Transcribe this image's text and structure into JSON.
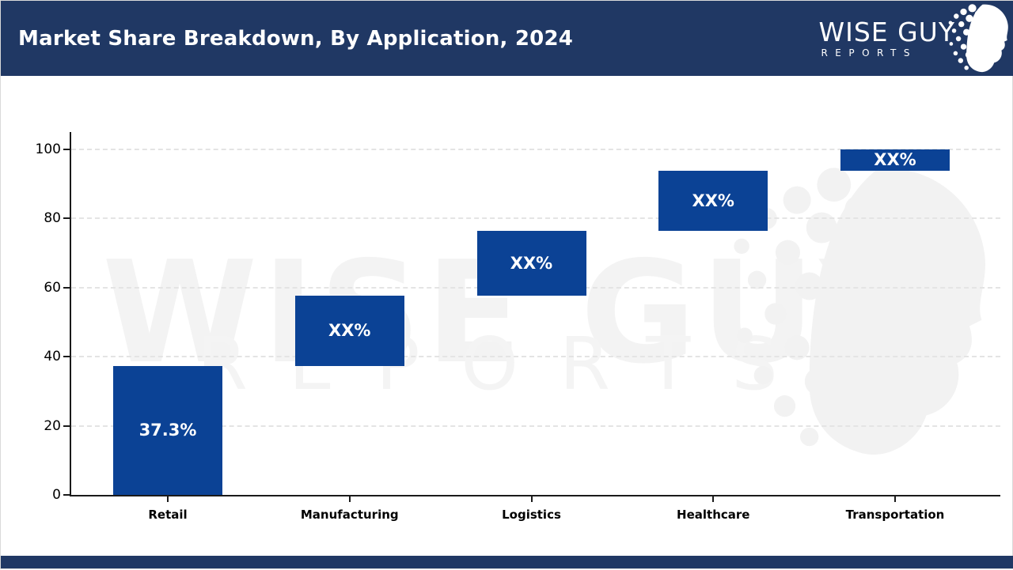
{
  "header": {
    "title": "Market Share Breakdown, By Application, 2024",
    "logo": {
      "line1": "WISE GUY",
      "line2": "REPORTS"
    }
  },
  "watermark": {
    "line1": "WISE GUY",
    "line2": "REPORTS"
  },
  "chart_data": {
    "type": "bar",
    "subtype": "waterfall",
    "title": "Market Share Breakdown, By Application, 2024",
    "xlabel": "",
    "ylabel": "",
    "categories": [
      "Retail",
      "Manufacturing",
      "Logistics",
      "Healthcare",
      "Transportation"
    ],
    "segments": [
      {
        "category": "Retail",
        "start": 0,
        "end": 37.3,
        "label": "37.3%"
      },
      {
        "category": "Manufacturing",
        "start": 37.3,
        "end": 57.6,
        "label": "XX%"
      },
      {
        "category": "Logistics",
        "start": 57.6,
        "end": 76.3,
        "label": "XX%"
      },
      {
        "category": "Healthcare",
        "start": 76.3,
        "end": 93.7,
        "label": "XX%"
      },
      {
        "category": "Transportation",
        "start": 93.7,
        "end": 100,
        "label": "XX%"
      }
    ],
    "y_ticks": [
      0,
      20,
      40,
      60,
      80,
      100
    ],
    "ylim": [
      0,
      105
    ],
    "grid": "horizontal-dashed",
    "legend": "none"
  },
  "colors": {
    "header_bg": "#203864",
    "footer_bg": "#203864",
    "bar": "#0b4295",
    "bar_label": "#ffffff",
    "grid": "#e4e4e4",
    "axis": "#1a1a1a",
    "watermark": "#f3f3f3"
  }
}
